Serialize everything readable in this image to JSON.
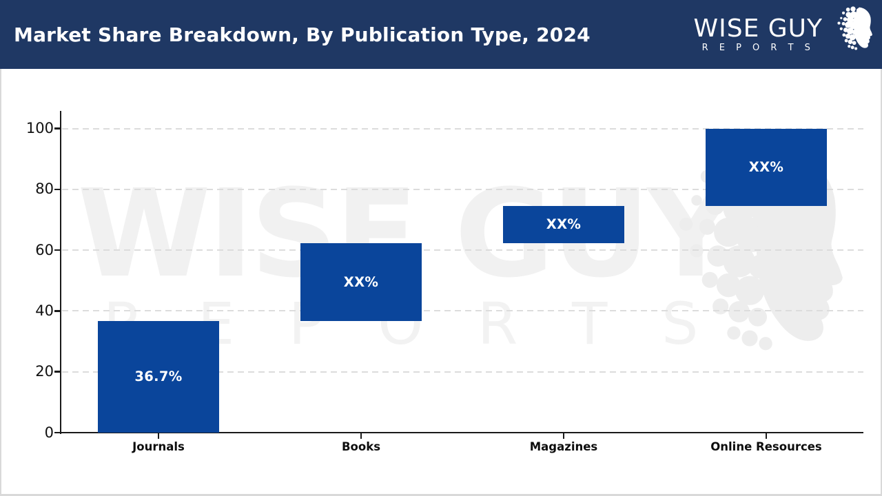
{
  "header": {
    "title": "Market Share Breakdown, By Publication Type, 2024",
    "bg_color": "#1f3864",
    "logo": {
      "line1": "WISE GUY",
      "line2": "R E P O R T S"
    }
  },
  "watermark": {
    "line1": "WISE GUY",
    "line2": "R E P O R T S"
  },
  "chart_data": {
    "type": "bar",
    "subtype": "waterfall-floating-segments",
    "title": "",
    "xlabel": "",
    "ylabel": "",
    "categories": [
      "Journals",
      "Books",
      "Magazines",
      "Online Resources"
    ],
    "segments": [
      {
        "category": "Journals",
        "start": 0,
        "end": 36.7,
        "label": "36.7%"
      },
      {
        "category": "Books",
        "start": 36.7,
        "end": 62.3,
        "label": "XX%"
      },
      {
        "category": "Magazines",
        "start": 62.3,
        "end": 74.6,
        "label": "XX%"
      },
      {
        "category": "Online Resources",
        "start": 74.6,
        "end": 100,
        "label": "XX%"
      }
    ],
    "y_ticks": [
      0,
      20,
      40,
      60,
      80,
      100
    ],
    "ylim": [
      0,
      100
    ],
    "grid": true,
    "grid_style": "dashed",
    "legend": "none",
    "bar_color": "#0a459b",
    "bar_label_color": "#ffffff",
    "axis_color": "#1a1a1a",
    "grid_color": "#dcdcdc"
  }
}
